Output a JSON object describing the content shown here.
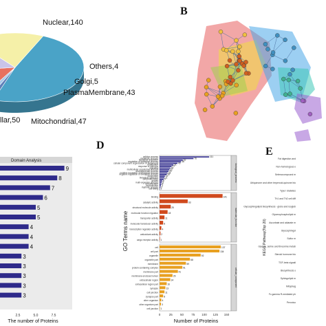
{
  "panels": {
    "b": "B",
    "d": "D",
    "e": "E"
  },
  "chart_data": [
    {
      "type": "pie",
      "slices": [
        {
          "label": "Nuclear,140",
          "value": 140,
          "color": "#4aa3c7"
        },
        {
          "label": "Others,4",
          "value": 4,
          "color": "#5e7fb8"
        },
        {
          "label": "Golgi,5",
          "value": 5,
          "color": "#a8c8e8"
        },
        {
          "label": "PlasmaMembrane,43",
          "value": 43,
          "color": "#e8705f"
        },
        {
          "label": "Mitochondrial,47",
          "value": 47,
          "color": "#c9c4e8"
        },
        {
          "label": "llar,50",
          "value": 50,
          "color": "#f5f0a8"
        }
      ]
    },
    {
      "type": "network",
      "clusters": [
        "#e85f5f",
        "#f0d84a",
        "#4aa8e8",
        "#40c8b8",
        "#a0d050",
        "#9b60d0"
      ]
    },
    {
      "type": "bar",
      "title": "Domain Analysis",
      "xlabel": "The number of Proteins",
      "xticks": [
        "2.5",
        "5.0",
        "7.5"
      ],
      "values": [
        9,
        8,
        7,
        6,
        5,
        5,
        4,
        4,
        4,
        3,
        3,
        3,
        3,
        3
      ],
      "value_labels": [
        "9",
        "8",
        "7",
        "6",
        "5",
        "5",
        "4",
        "4",
        "4",
        "3",
        "3",
        "3",
        "3",
        "3"
      ],
      "xlim": [
        0,
        10
      ]
    },
    {
      "type": "bar",
      "xlabel": "Number of Proteins",
      "ylabel": "GO Terms name",
      "xticks": [
        "0",
        "25",
        "50",
        "75",
        "100",
        "125",
        "150"
      ],
      "xlim": [
        0,
        160
      ],
      "groups": [
        {
          "name": "biological_process",
          "color": "#2e2a8a",
          "categories": [
            "cellular process",
            "metabolic process",
            "biological regulation",
            "regulation of biological process",
            "cellular component organization or biogenesis",
            "localization",
            "response to stimulus",
            "signaling",
            "multicellular organismal process",
            "developmental process",
            "positive regulation of biological process",
            "negative regulation of biological process",
            "locomotion",
            "biological adhesion",
            "cell proliferation",
            "growth",
            "multi-organism process",
            "detoxification",
            "reproduction",
            "rhythmic process",
            "cell killing"
          ],
          "values": [
            111,
            76,
            52,
            48,
            40,
            31,
            27,
            24,
            22,
            20,
            18,
            16,
            12,
            11,
            9,
            6,
            5,
            4,
            3,
            2,
            1
          ],
          "value_labels": [
            "111",
            "76",
            "52",
            "48",
            "40",
            "31",
            "27",
            "24",
            "22",
            "20",
            "18",
            "16",
            "12",
            "11",
            "9",
            "6",
            "5",
            "4",
            "3",
            "2",
            "1"
          ]
        },
        {
          "name": "molecular_function",
          "color": "#d04a1e",
          "categories": [
            "binding",
            "catalytic activity",
            "structural molecule activity",
            "molecular function regulator",
            "transporter activity",
            "molecular transducer activity",
            "transcription regulator activity",
            "antioxidant activity",
            "cargo receptor activity"
          ],
          "values": [
            141,
            63,
            25,
            18,
            11,
            8,
            4,
            2,
            1
          ],
          "value_labels": [
            "141",
            "63",
            "25",
            "18",
            "11",
            "8",
            "4",
            "2",
            "1"
          ]
        },
        {
          "name": "cellular_component",
          "color": "#e8a020",
          "categories": [
            "cell",
            "cell part",
            "organelle",
            "organelle part",
            "membrane",
            "protein-containing complex",
            "membrane part",
            "membrane-enclosed lumen",
            "extracellular region",
            "extracellular region part",
            "synapse",
            "cell junction",
            "synapse part",
            "other organism",
            "other organism part",
            "cell junction"
          ],
          "values": [
            137,
            134,
            92,
            68,
            59,
            51,
            41,
            29,
            24,
            16,
            13,
            11,
            8,
            4,
            3,
            1
          ],
          "value_labels": [
            "137",
            "134",
            "92",
            "68",
            "59",
            "51",
            "41",
            "29",
            "24",
            "16",
            "13",
            "11",
            "8",
            "4",
            "3",
            "1"
          ]
        }
      ]
    },
    {
      "type": "bar",
      "ylabel": "KEGG Pathway(Top 20)",
      "categories": [
        "Fat digestion and",
        "Non-homologous e",
        "Selenocompound m",
        "Ubiquinone and other terpenoid-quinone bio",
        "Type I diabetes",
        "Th1 and Th2 cell diff",
        "Glycosphingolipid biosynthesis - globo and isoglob",
        "Glycerophospholipid m",
        "Ascorbate and aldarate m",
        "Glycosphingol",
        "Sulfur m",
        "Glycine, serine and threonine metab",
        "Steroid hormone bio",
        "TGF-beta signali",
        "Biosynthesis o",
        "Sphingolipid m",
        "Mitophag",
        "Fc gamma R-mediated ph",
        "Peroxiso"
      ]
    }
  ]
}
